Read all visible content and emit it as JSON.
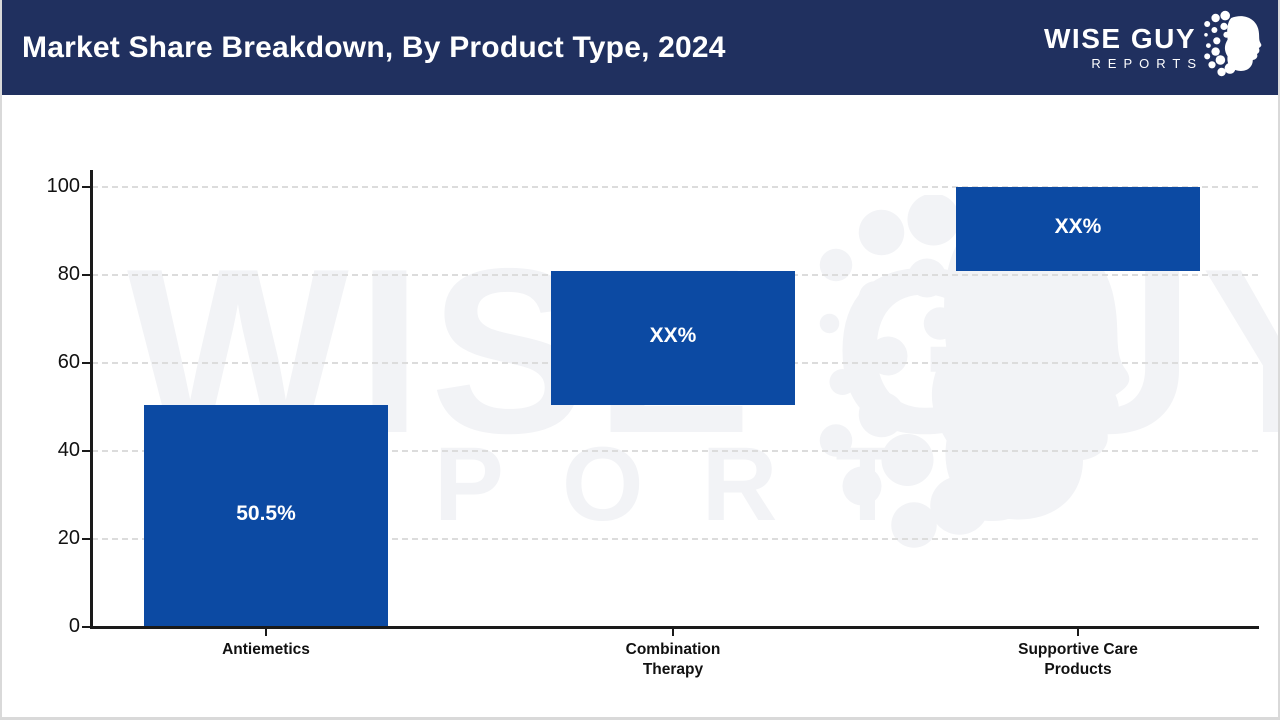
{
  "header": {
    "title": "Market Share Breakdown, By Product Type, 2024",
    "bg_color": "#20305f",
    "logo": {
      "line1": "WISE GUY",
      "line2": "REPORTS"
    }
  },
  "watermark": {
    "line1": "WISE GUY",
    "line2": "REPORTS"
  },
  "chart_data": {
    "type": "bar",
    "subtype": "floating-segment-waterfall",
    "title": "Market Share Breakdown, By Product Type, 2024",
    "categories": [
      "Antiemetics",
      "Combination Therapy",
      "Supportive Care Products"
    ],
    "categories_lines": [
      [
        "Antiemetics"
      ],
      [
        "Combination",
        "Therapy"
      ],
      [
        "Supportive Care",
        "Products"
      ]
    ],
    "series": [
      {
        "name": "Market share (%)",
        "ranges": [
          [
            0,
            50.5
          ],
          [
            50.5,
            81
          ],
          [
            81,
            100
          ]
        ],
        "labels": [
          "50.5%",
          "XX%",
          "XX%"
        ]
      }
    ],
    "ylim": [
      0,
      100
    ],
    "yticks": [
      0,
      20,
      40,
      60,
      80,
      100
    ],
    "grid": "dashed",
    "legend": "none",
    "colors": {
      "bar": "#0c4aa3",
      "bar_label": "#ffffff",
      "grid": "#dcdcdc",
      "axis": "#1a1a1a",
      "tick_label": "#111111"
    }
  }
}
